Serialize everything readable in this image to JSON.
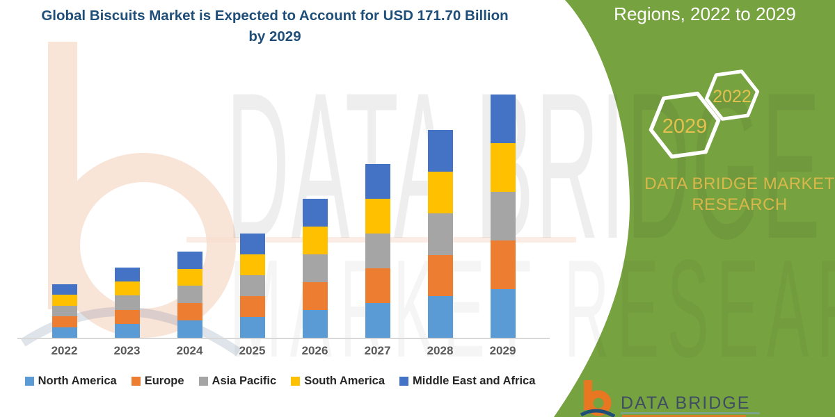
{
  "title": {
    "text": "Global Biscuits Market is Expected to Account for USD 171.70 Billion by 2029",
    "color": "#1F4E79"
  },
  "side_panel": {
    "heading": "Regions, 2022 to 2029",
    "hex_large_year": "2029",
    "hex_small_year": "2022",
    "brand": "DATA BRIDGE MARKET RESEARCH",
    "bg_color": "#76A23F",
    "accent_yellow": "#D9B84B",
    "hex_year_color": "#E3C14F"
  },
  "watermark": {
    "line1": "DATA BRIDGE",
    "line2": "MARKET RESEARCH"
  },
  "footer": {
    "brand": "DATA BRIDGE"
  },
  "chart_data": {
    "type": "bar",
    "stacked": true,
    "title": "Global Biscuits Market is Expected to Account for USD 171.70 Billion by 2029",
    "unit": "USD Billion",
    "categories": [
      "2022",
      "2023",
      "2024",
      "2025",
      "2026",
      "2027",
      "2028",
      "2029"
    ],
    "series": [
      {
        "name": "North America",
        "color": "#5B9BD5",
        "values": [
          7.6,
          9.9,
          12.2,
          14.7,
          19.6,
          24.5,
          29.3,
          34.34
        ]
      },
      {
        "name": "Europe",
        "color": "#ED7D31",
        "values": [
          7.6,
          9.9,
          12.2,
          14.7,
          19.6,
          24.5,
          29.3,
          34.34
        ]
      },
      {
        "name": "Asia Pacific",
        "color": "#A5A5A5",
        "values": [
          7.6,
          9.9,
          12.2,
          14.7,
          19.6,
          24.5,
          29.3,
          34.34
        ]
      },
      {
        "name": "South America",
        "color": "#FFC000",
        "values": [
          7.6,
          9.9,
          12.2,
          14.7,
          19.6,
          24.5,
          29.3,
          34.34
        ]
      },
      {
        "name": "Middle East and Africa",
        "color": "#4472C4",
        "values": [
          7.6,
          9.9,
          12.2,
          14.7,
          19.6,
          24.5,
          29.3,
          34.34
        ]
      }
    ],
    "totals_estimated": [
      38.0,
      49.5,
      61.0,
      73.5,
      98.0,
      122.5,
      146.5,
      171.7
    ],
    "y_axis_visible": false,
    "gridlines": false,
    "legend_position": "bottom",
    "x_label_color": "#595959"
  }
}
